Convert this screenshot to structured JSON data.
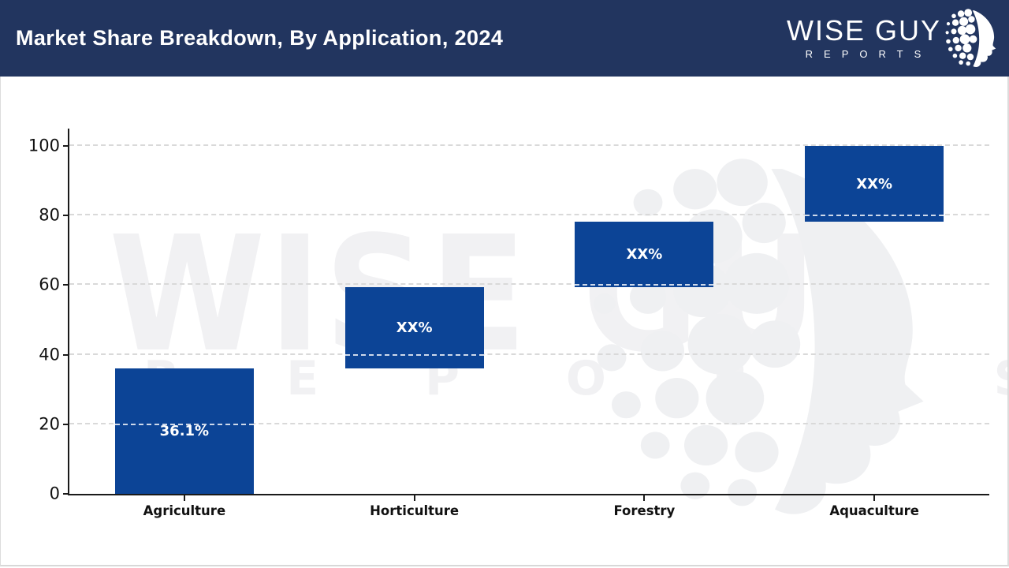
{
  "header": {
    "title": "Market Share Breakdown, By Application, 2024",
    "background_color": "#22355f",
    "logo": {
      "name": "WISE GUY",
      "subtitle": "REPORTS",
      "icon": "dotted-face-profile-icon"
    }
  },
  "watermark": {
    "text_large": "WISE GU",
    "text_small": "R E P O R T S",
    "icon": "dotted-face-profile-icon"
  },
  "chart_data": {
    "type": "bar",
    "subtype": "waterfall",
    "title": "Market Share Breakdown, By Application, 2024",
    "categories": [
      "Agriculture",
      "Horticulture",
      "Forestry",
      "Aquaculture"
    ],
    "series": [
      {
        "name": "Market share (%)",
        "segments": [
          {
            "category": "Agriculture",
            "start": 0,
            "end": 36.1,
            "label": "36.1%"
          },
          {
            "category": "Horticulture",
            "start": 36.1,
            "end": 59.4,
            "label": "XX%"
          },
          {
            "category": "Forestry",
            "start": 59.4,
            "end": 78.2,
            "label": "XX%"
          },
          {
            "category": "Aquaculture",
            "start": 78.2,
            "end": 100,
            "label": "XX%"
          }
        ]
      }
    ],
    "xlabel": "",
    "ylabel": "",
    "ylim": [
      0,
      100
    ],
    "yticks": [
      0,
      20,
      40,
      60,
      80,
      100
    ],
    "grid": "horizontal-dashed",
    "legend": "none",
    "bar_color": "#0c4496",
    "bar_label_color": "#ffffff"
  }
}
